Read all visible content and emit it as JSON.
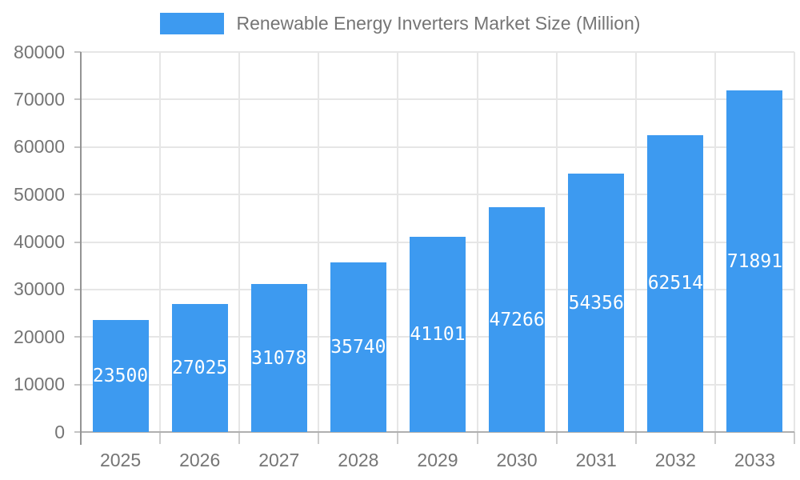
{
  "legend": {
    "label": "Renewable Energy Inverters Market Size (Million)"
  },
  "chart_data": {
    "type": "bar",
    "title": "Renewable Energy Inverters Market Size (Million)",
    "categories": [
      "2025",
      "2026",
      "2027",
      "2028",
      "2029",
      "2030",
      "2031",
      "2032",
      "2033"
    ],
    "values": [
      23500,
      27025,
      31078,
      35740,
      41101,
      47266,
      54356,
      62514,
      71891
    ],
    "xlabel": "",
    "ylabel": "",
    "ylim": [
      0,
      80000
    ],
    "yticks": [
      0,
      10000,
      20000,
      30000,
      40000,
      50000,
      60000,
      70000,
      80000
    ],
    "grid": true,
    "legend_position": "top-center",
    "colors": {
      "bar": "#3D9AF0",
      "axis_text": "#757575",
      "grid_line": "#E6E6E6",
      "axis_line_y": "#949494",
      "axis_line_x": "#B0B0B0",
      "value_label": "#FFFFFF"
    }
  }
}
